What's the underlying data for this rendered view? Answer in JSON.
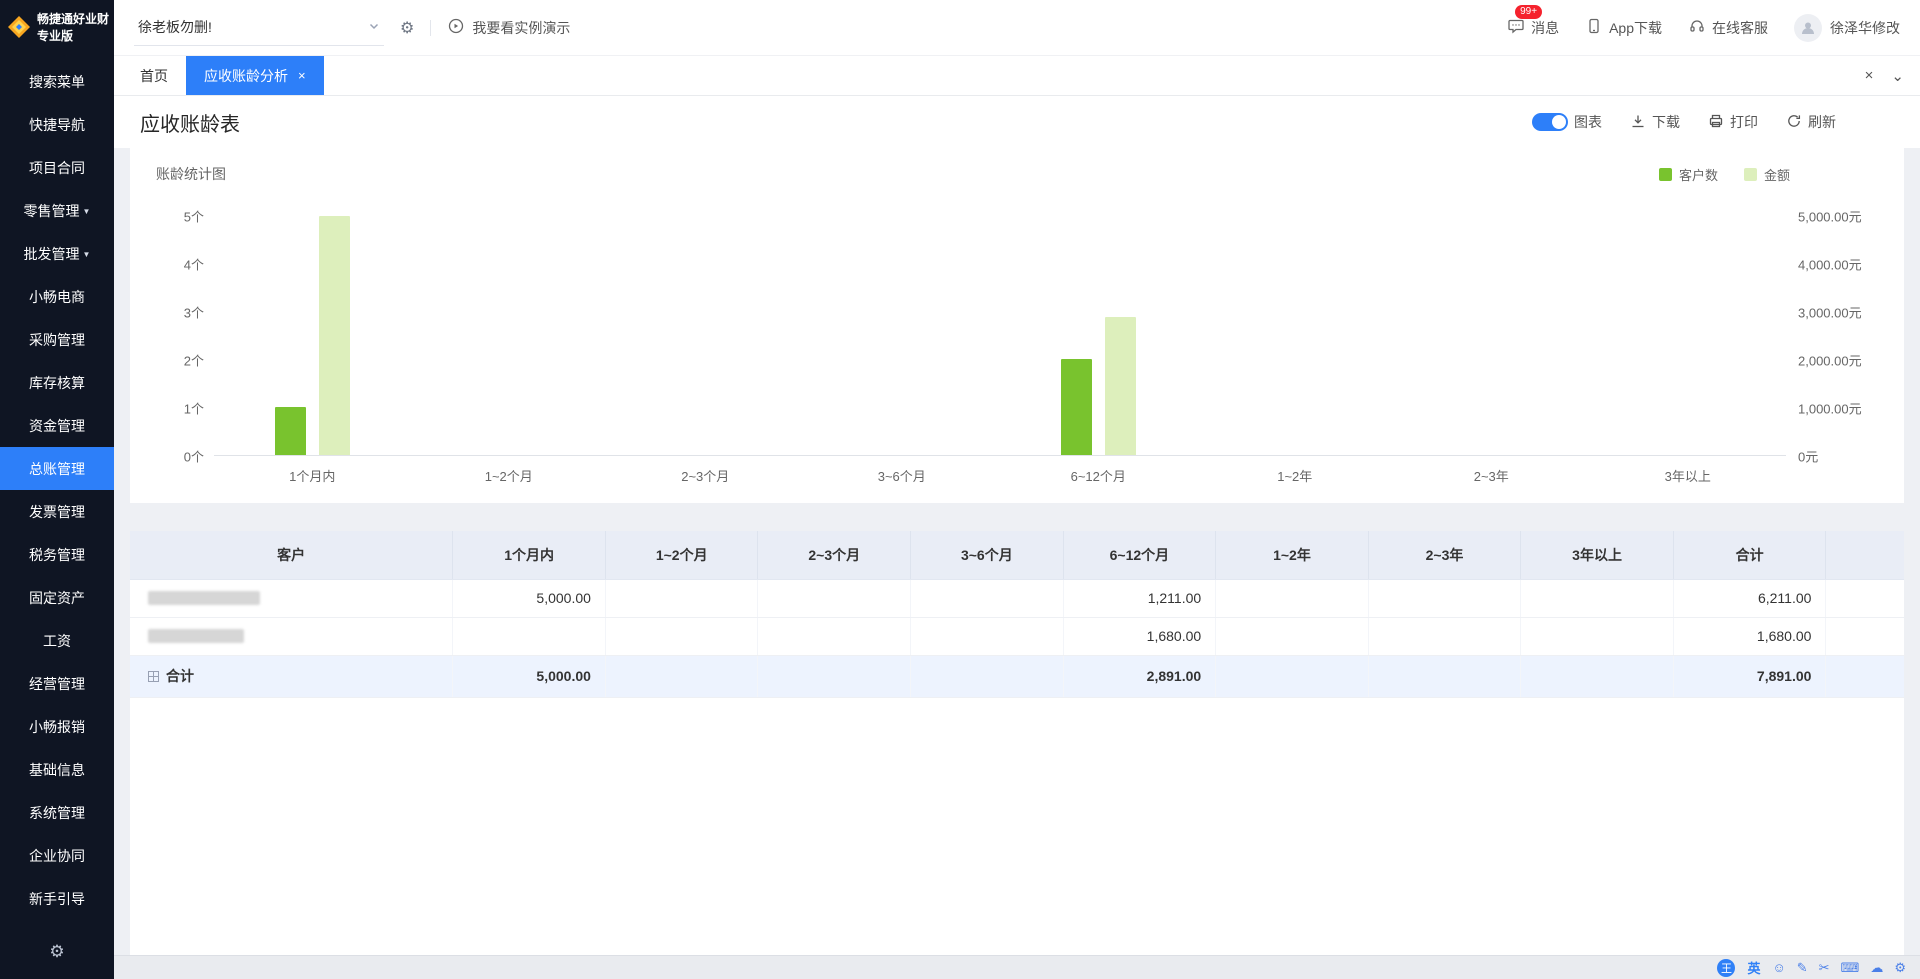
{
  "brand": {
    "name": "畅捷通好业财",
    "edition": "专业版"
  },
  "topbar": {
    "company_select": "徐老板勿删!",
    "demo_label": "我要看实例演示",
    "message_label": "消息",
    "message_badge": "99+",
    "app_download_label": "App下载",
    "service_label": "在线客服",
    "username": "徐泽华修改"
  },
  "sidebar": {
    "items": [
      {
        "label": "搜索菜单"
      },
      {
        "label": "快捷导航"
      },
      {
        "label": "项目合同"
      },
      {
        "label": "零售管理",
        "arrow": true
      },
      {
        "label": "批发管理",
        "arrow": true
      },
      {
        "label": "小畅电商"
      },
      {
        "label": "采购管理"
      },
      {
        "label": "库存核算"
      },
      {
        "label": "资金管理"
      },
      {
        "label": "总账管理",
        "active": true
      },
      {
        "label": "发票管理"
      },
      {
        "label": "税务管理"
      },
      {
        "label": "固定资产"
      },
      {
        "label": "工资"
      },
      {
        "label": "经营管理"
      },
      {
        "label": "小畅报销"
      },
      {
        "label": "基础信息"
      },
      {
        "label": "系统管理"
      },
      {
        "label": "企业协同"
      },
      {
        "label": "新手引导"
      }
    ]
  },
  "tabs": [
    {
      "label": "首页",
      "active": false
    },
    {
      "label": "应收账龄分析",
      "active": true,
      "closable": true
    }
  ],
  "page": {
    "title": "应收账龄表",
    "toolbar": {
      "chart_toggle_label": "图表",
      "download_label": "下载",
      "print_label": "打印",
      "refresh_label": "刷新"
    }
  },
  "chart_data": {
    "type": "bar",
    "title": "账龄统计图",
    "categories": [
      "1个月内",
      "1~2个月",
      "2~3个月",
      "3~6个月",
      "6~12个月",
      "1~2年",
      "2~3年",
      "3年以上"
    ],
    "series": [
      {
        "name": "客户数",
        "axis": "left",
        "color": "#79c32e",
        "values": [
          1,
          0,
          0,
          0,
          2,
          0,
          0,
          0
        ]
      },
      {
        "name": "金额",
        "axis": "right",
        "color": "#ddefbc",
        "values": [
          5000,
          0,
          0,
          0,
          2891,
          0,
          0,
          0
        ]
      }
    ],
    "left_axis": {
      "unit": "个",
      "max": 5,
      "ticks": [
        "5个",
        "4个",
        "3个",
        "2个",
        "1个",
        "0个"
      ]
    },
    "right_axis": {
      "unit": "元",
      "max": 5000,
      "ticks": [
        "5,000.00元",
        "4,000.00元",
        "3,000.00元",
        "2,000.00元",
        "1,000.00元",
        "0元"
      ]
    },
    "legend_position": "top-right",
    "grid": false
  },
  "table": {
    "headers": [
      "客户",
      "1个月内",
      "1~2个月",
      "2~3个月",
      "3~6个月",
      "6~12个月",
      "1~2年",
      "2~3年",
      "3年以上",
      "合计"
    ],
    "rows": [
      {
        "customer_redacted": true,
        "values": [
          "5,000.00",
          "",
          "",
          "",
          "1,211.00",
          "",
          "",
          "",
          "6,211.00"
        ]
      },
      {
        "customer_redacted": true,
        "values": [
          "",
          "",
          "",
          "",
          "1,680.00",
          "",
          "",
          "",
          "1,680.00"
        ]
      }
    ],
    "total": {
      "label": "合计",
      "values": [
        "5,000.00",
        "",
        "",
        "",
        "2,891.00",
        "",
        "",
        "",
        "7,891.00"
      ]
    }
  },
  "ime": {
    "logo": "王",
    "lang": "英",
    "icons": [
      "emoji",
      "pen",
      "scissors",
      "keyboard",
      "cloud",
      "settings"
    ]
  },
  "icons": {
    "gear": "⚙",
    "close": "×",
    "chevron_down": "⌄",
    "nav_arrow": "▼",
    "emoji": "☺",
    "pen": "✎",
    "scissors": "✂",
    "keyboard": "⌨",
    "cloud": "☁",
    "settings": "⚙"
  },
  "colors": {
    "accent_blue": "#2d7ff9",
    "customer_green": "#79c32e",
    "amount_light_green": "#ddefbc",
    "badge_red": "#f5222d",
    "sidebar_bg": "#0f1523"
  }
}
